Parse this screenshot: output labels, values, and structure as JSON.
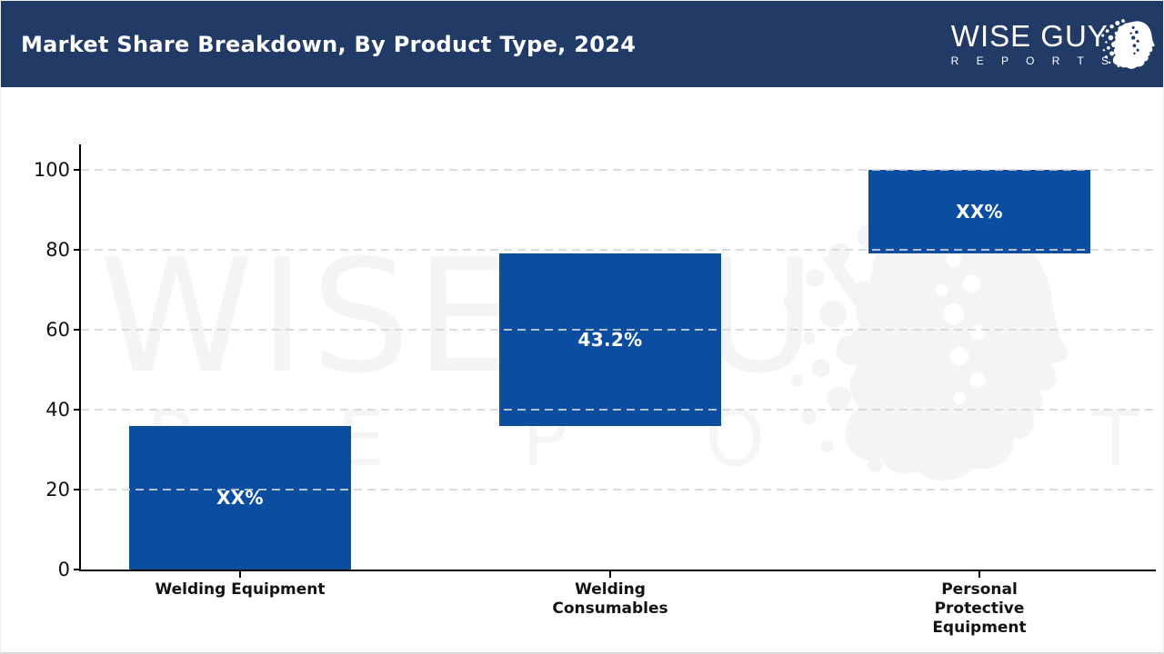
{
  "header": {
    "title": "Market Share Breakdown, By Product Type, 2024",
    "logo": {
      "brand": "WISE GUY",
      "sub": "R E P O R T S"
    }
  },
  "watermark": {
    "line1": "WISE GUY",
    "line2": "REPORTS"
  },
  "colors": {
    "header_bg": "#223a66",
    "bar_fill": "#0b4da1",
    "bar_label_text": "#ffffff",
    "grid_line": "#d9d9d9",
    "axis_line": "#000000",
    "watermark_text": "#f4f4f7"
  },
  "chart_data": {
    "type": "bar",
    "subtype": "waterfall-stacked",
    "title": "Market Share Breakdown, By Product Type, 2024",
    "categories": [
      "Welding Equipment",
      "Welding Consumables",
      "Personal Protective Equipment"
    ],
    "category_lines": [
      [
        "Welding Equipment"
      ],
      [
        "Welding",
        "Consumables"
      ],
      [
        "Personal",
        "Protective",
        "Equipment"
      ]
    ],
    "segments": [
      {
        "category": "Welding Equipment",
        "start": 0,
        "end": 36,
        "value": null,
        "value_label": "XX%"
      },
      {
        "category": "Welding Consumables",
        "start": 36,
        "end": 79.2,
        "value": 43.2,
        "value_label": "43.2%"
      },
      {
        "category": "Personal Protective Equipment",
        "start": 79.2,
        "end": 100,
        "value": null,
        "value_label": "XX%"
      }
    ],
    "xlabel": "",
    "ylabel": "",
    "ylim": [
      0,
      100
    ],
    "yticks": [
      0,
      20,
      40,
      60,
      80,
      100
    ],
    "grid": "horizontal dashed, drawn over bars",
    "legend": "none"
  }
}
